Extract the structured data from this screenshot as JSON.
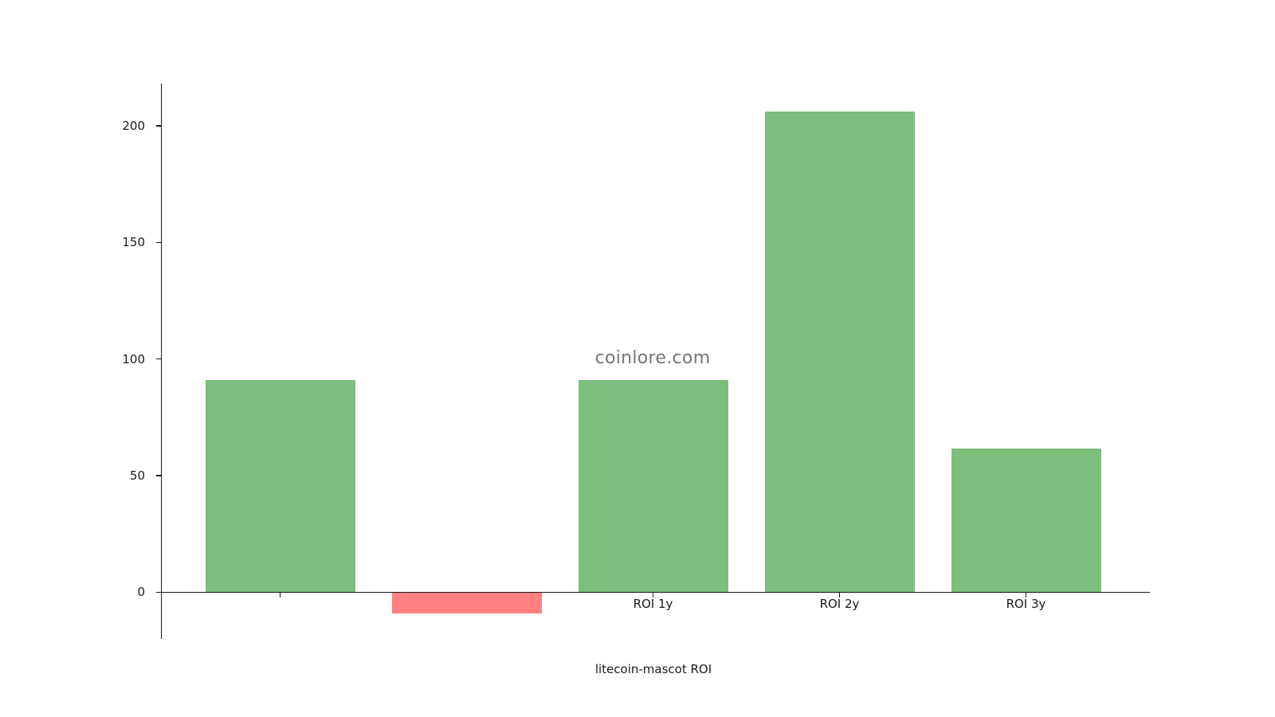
{
  "chart": {
    "watermark": "coinlore.com",
    "xlabel": "litecoin-mascot ROI"
  },
  "chart_data": {
    "type": "bar",
    "title": "",
    "xlabel": "litecoin-mascot ROI",
    "ylabel": "",
    "watermark": "coinlore.com",
    "categories": [
      "",
      "",
      "ROI 1y",
      "ROI 2y",
      "ROI 3y"
    ],
    "values": [
      91,
      -9,
      91,
      206,
      61.5
    ],
    "yticks": [
      0,
      50,
      100,
      150,
      200
    ],
    "ylim": [
      -20,
      216
    ],
    "grid": false,
    "legend": "none",
    "positive_color": "#7CBE7C",
    "negative_color": "#FF8080",
    "axis_color": "#1a1a1a",
    "watermark_color": "#757575"
  }
}
